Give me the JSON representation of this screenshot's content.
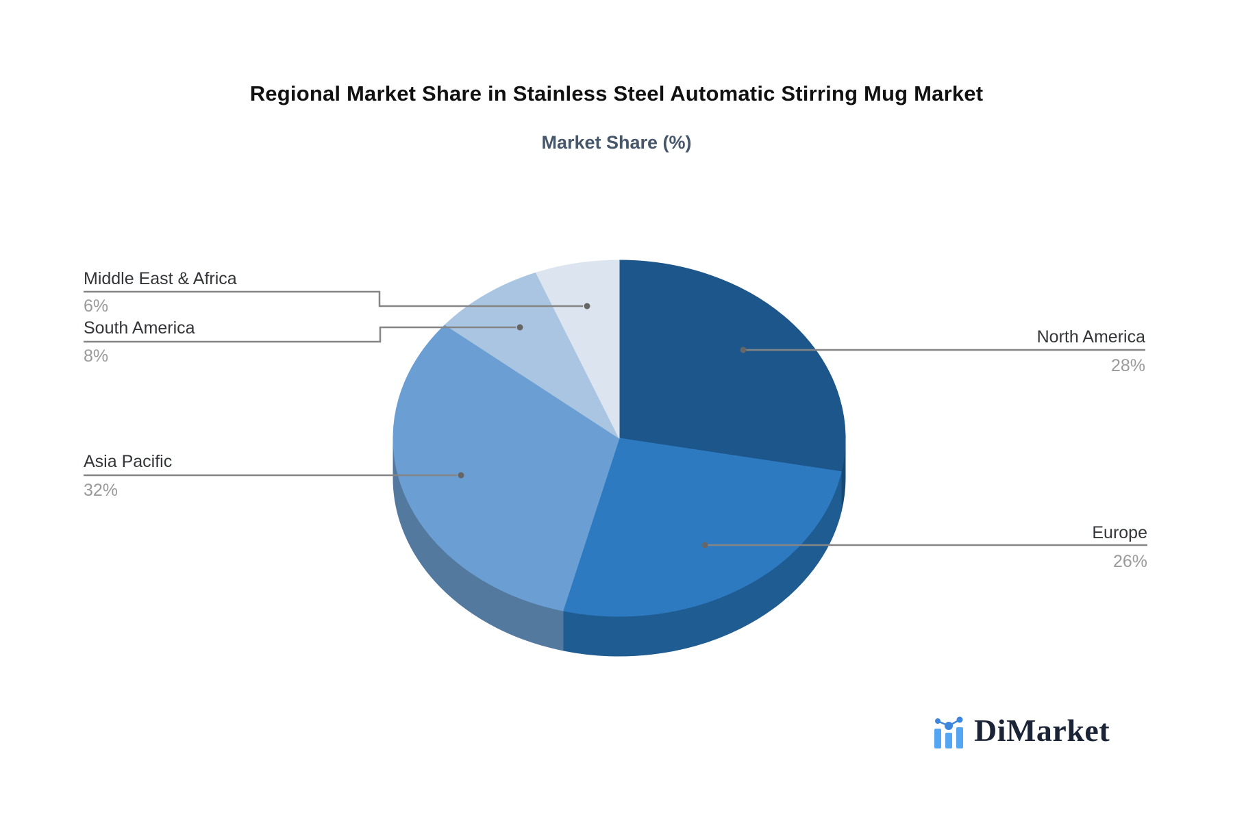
{
  "chart_data": {
    "type": "pie",
    "style": "3d",
    "title": "Regional Market Share in Stainless Steel Automatic Stirring Mug Market",
    "subtitle": "Market Share (%)",
    "unit": "%",
    "direction": "clockwise",
    "start_angle_deg": 0,
    "legend": "none",
    "categories": [
      "North America",
      "Europe",
      "Asia Pacific",
      "South America",
      "Middle East & Africa"
    ],
    "values": [
      28,
      26,
      32,
      8,
      6
    ],
    "value_labels": [
      "28%",
      "26%",
      "32%",
      "8%",
      "6%"
    ],
    "colors": [
      "#1d568b",
      "#2e7ac1",
      "#6b9fd3",
      "#a9c5e1",
      "#dce4ef"
    ],
    "side_colors": [
      "#174872",
      "#1f5c91",
      "#54799f",
      "#87a2bc",
      "#b8c6d8"
    ]
  },
  "ui_colors": {
    "background": "#ffffff",
    "title": "#111111",
    "subtitle": "#46566b",
    "label_text": "#333538",
    "value_text": "#9a9a9a",
    "leader_line": "#858585",
    "leader_dot": "#666666",
    "logo_text": "#1b2436",
    "logo_bar": "#55a6f2",
    "logo_dot": "#3c87dd"
  },
  "branding": {
    "logo_text": "DiMarket"
  }
}
